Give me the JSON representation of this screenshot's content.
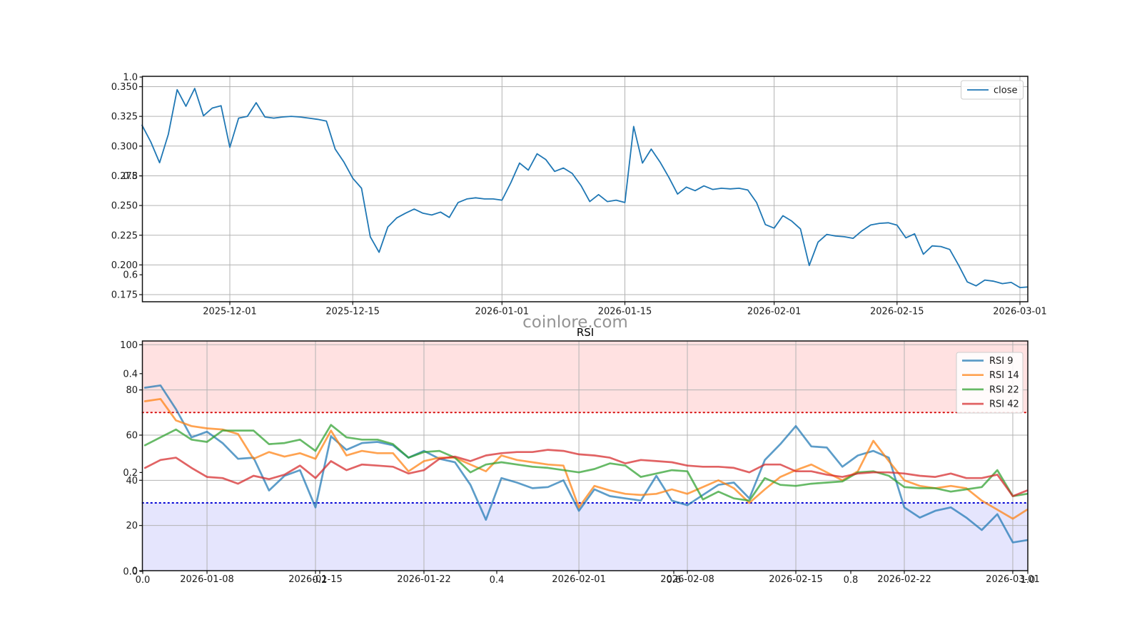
{
  "app": {
    "watermark": "coinlore.com",
    "background": "#ffffff"
  },
  "hidden_axis": {
    "x_tick_labels": [
      "0.0",
      "0.2",
      "0.4",
      "0.6",
      "0.8",
      "1.0"
    ],
    "y_tick_labels": [
      "0.0",
      "0.2",
      "0.4",
      "0.6",
      "0.8",
      "1.0"
    ]
  },
  "chart_data": [
    {
      "id": "price",
      "type": "line",
      "title": "",
      "grid": true,
      "ylim": [
        0.1692,
        0.3587
      ],
      "legend": {
        "position": "upper right",
        "entries": [
          {
            "label": "close",
            "color": "#1f77b4"
          }
        ]
      },
      "x_start_date": "2025-11-21",
      "x_ticks": [
        {
          "label": "2025-12-01",
          "day": 10
        },
        {
          "label": "2025-12-15",
          "day": 24
        },
        {
          "label": "2026-01-01",
          "day": 41
        },
        {
          "label": "2026-01-15",
          "day": 55
        },
        {
          "label": "2026-02-01",
          "day": 72
        },
        {
          "label": "2026-02-15",
          "day": 86
        },
        {
          "label": "2026-03-01",
          "day": 100
        }
      ],
      "y_ticks": [
        {
          "label": "0.175",
          "value": 0.175
        },
        {
          "label": "0.200",
          "value": 0.2
        },
        {
          "label": "0.225",
          "value": 0.225
        },
        {
          "label": "0.250",
          "value": 0.25
        },
        {
          "label": "0.275",
          "value": 0.275
        },
        {
          "label": "0.300",
          "value": 0.3
        },
        {
          "label": "0.325",
          "value": 0.325
        },
        {
          "label": "0.350",
          "value": 0.35
        }
      ],
      "series": [
        {
          "name": "close",
          "color": "#1f77b4",
          "width": 1.8,
          "alpha": 1,
          "values": [
            0.3175,
            0.3035,
            0.286,
            0.31,
            0.3475,
            0.3335,
            0.3485,
            0.3255,
            0.332,
            0.334,
            0.299,
            0.3235,
            0.325,
            0.3365,
            0.3245,
            0.3235,
            0.3245,
            0.325,
            0.3245,
            0.3235,
            0.3225,
            0.321,
            0.2975,
            0.2865,
            0.273,
            0.2645,
            0.2237,
            0.2106,
            0.232,
            0.2395,
            0.2435,
            0.247,
            0.2435,
            0.242,
            0.2445,
            0.24,
            0.2525,
            0.2555,
            0.2565,
            0.2555,
            0.2555,
            0.2545,
            0.269,
            0.2857,
            0.2798,
            0.2935,
            0.2886,
            0.2787,
            0.2816,
            0.277,
            0.2668,
            0.2533,
            0.2592,
            0.2533,
            0.2545,
            0.2525,
            0.3165,
            0.2857,
            0.2975,
            0.2866,
            0.2738,
            0.2596,
            0.2655,
            0.2625,
            0.2665,
            0.2635,
            0.2645,
            0.264,
            0.2645,
            0.263,
            0.2525,
            0.234,
            0.231,
            0.2414,
            0.2369,
            0.2303,
            0.1995,
            0.2192,
            0.2257,
            0.2243,
            0.2237,
            0.2224,
            0.2287,
            0.2336,
            0.235,
            0.2355,
            0.2335,
            0.2228,
            0.2262,
            0.209,
            0.216,
            0.2155,
            0.213,
            0.2,
            0.1857,
            0.1824,
            0.1873,
            0.1863,
            0.1843,
            0.1853,
            0.181,
            0.1814
          ]
        }
      ]
    },
    {
      "id": "rsi",
      "type": "line",
      "title": "RSI",
      "grid": true,
      "ylim": [
        0,
        101.9
      ],
      "bands": [
        {
          "from": 70,
          "to": 101.9,
          "color": "rgba(255,20,20,0.13)",
          "name": "overbought-band"
        },
        {
          "from": 0,
          "to": 30,
          "color": "rgba(40,40,235,0.12)",
          "name": "oversold-band"
        }
      ],
      "ref_lines": [
        {
          "value": 70,
          "color": "#d40000",
          "style": "dotted",
          "name": "overbought-line"
        },
        {
          "value": 30,
          "color": "#0000d4",
          "style": "dotted",
          "name": "oversold-line"
        }
      ],
      "legend": {
        "position": "upper right",
        "entries": [
          {
            "label": "RSI 9",
            "color": "#1f77b4"
          },
          {
            "label": "RSI 14",
            "color": "#ff7f0e"
          },
          {
            "label": "RSI 22",
            "color": "#2ca02c"
          },
          {
            "label": "RSI 42",
            "color": "#d62728"
          }
        ]
      },
      "x_start_date": "2026-01-04",
      "x_ticks": [
        {
          "label": "2026-01-08",
          "day": 4
        },
        {
          "label": "2026-01-15",
          "day": 11
        },
        {
          "label": "2026-01-22",
          "day": 18
        },
        {
          "label": "2026-02-01",
          "day": 28
        },
        {
          "label": "2026-02-08",
          "day": 35
        },
        {
          "label": "2026-02-15",
          "day": 42
        },
        {
          "label": "2026-02-22",
          "day": 49
        },
        {
          "label": "2026-03-01",
          "day": 56
        }
      ],
      "y_ticks": [
        {
          "label": "0",
          "value": 0
        },
        {
          "label": "20",
          "value": 20
        },
        {
          "label": "40",
          "value": 40
        },
        {
          "label": "60",
          "value": 60
        },
        {
          "label": "80",
          "value": 80
        },
        {
          "label": "100",
          "value": 100
        }
      ],
      "series": [
        {
          "name": "RSI 9",
          "color": "#1f77b4",
          "width": 2.7,
          "alpha": 0.72,
          "values": [
            81,
            82,
            71.5,
            59,
            61.5,
            56.5,
            49.5,
            50,
            35.5,
            42,
            44.5,
            28,
            59.5,
            53.5,
            56.5,
            57,
            55.5,
            50,
            53,
            49.5,
            48,
            38,
            22.5,
            41,
            39,
            36.5,
            37,
            40,
            26.5,
            36,
            33,
            32,
            31,
            42,
            31,
            29,
            33.5,
            38,
            39,
            32,
            49,
            56,
            64,
            55,
            54.5,
            46,
            51,
            53,
            50,
            28,
            23.5,
            26.5,
            28,
            23.5,
            18,
            25,
            12.5,
            13.5
          ]
        },
        {
          "name": "RSI 14",
          "color": "#ff7f0e",
          "width": 2.7,
          "alpha": 0.72,
          "values": [
            75,
            76,
            66.5,
            64,
            63,
            62.5,
            60.5,
            49.5,
            52.5,
            50.5,
            52,
            49.5,
            62,
            51,
            53,
            52,
            52,
            44,
            48.5,
            50,
            50,
            47,
            44,
            51,
            49,
            48,
            47,
            46.5,
            28,
            37.5,
            35.5,
            34,
            33.5,
            34,
            36,
            34,
            37,
            40,
            36.5,
            30,
            36,
            41.5,
            44.5,
            47,
            43.5,
            40,
            44,
            57.5,
            48.5,
            40,
            37.5,
            36.5,
            37.5,
            36.5,
            31,
            27,
            23,
            27
          ]
        },
        {
          "name": "RSI 22",
          "color": "#2ca02c",
          "width": 2.7,
          "alpha": 0.72,
          "values": [
            55.5,
            59,
            62.5,
            58,
            57,
            62,
            62,
            62,
            56,
            56.5,
            58,
            53,
            64.5,
            59,
            58,
            58,
            56,
            50,
            52.5,
            53,
            50,
            43.5,
            47,
            48,
            47,
            46,
            45.5,
            44.5,
            43.5,
            45,
            47.5,
            46.5,
            41.5,
            43,
            44.5,
            44,
            31.5,
            35,
            32,
            31,
            41,
            38,
            37.5,
            38.5,
            39,
            39.5,
            43.5,
            44,
            42,
            37,
            36.5,
            36.5,
            35,
            36,
            37,
            44.5,
            33,
            34
          ]
        },
        {
          "name": "RSI 42",
          "color": "#d62728",
          "width": 2.7,
          "alpha": 0.72,
          "values": [
            45.5,
            49,
            50,
            45.5,
            41.5,
            41,
            38.5,
            42,
            40.5,
            42.5,
            46.5,
            41,
            48.5,
            44.5,
            47,
            46.5,
            46,
            43,
            44.5,
            49.5,
            50.5,
            48.5,
            51,
            52,
            52.5,
            52.5,
            53.5,
            53,
            51.5,
            51,
            50,
            47.5,
            49,
            48.5,
            48,
            46.5,
            46,
            46,
            45.5,
            43.5,
            47,
            47,
            44,
            44,
            42.5,
            41.5,
            43,
            43.5,
            43.5,
            43,
            42,
            41.5,
            43,
            41,
            41,
            42.5,
            33,
            35.5
          ]
        }
      ]
    }
  ]
}
